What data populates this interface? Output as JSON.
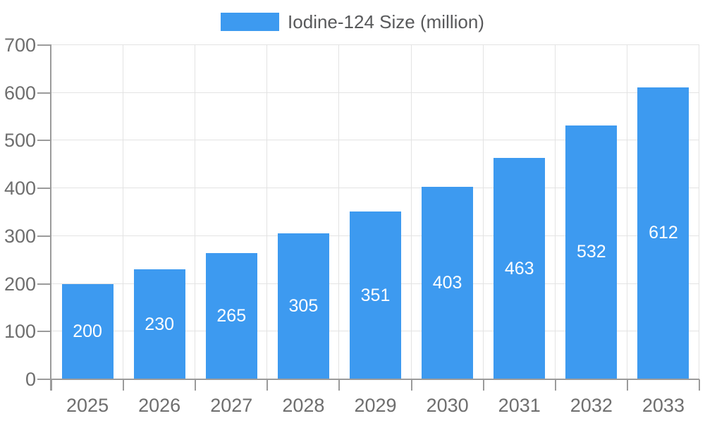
{
  "chart_data": {
    "type": "bar",
    "title": "",
    "legend": "Iodine-124 Size (million)",
    "legend_position": "top",
    "categories": [
      "2025",
      "2026",
      "2027",
      "2028",
      "2029",
      "2030",
      "2031",
      "2032",
      "2033"
    ],
    "series": [
      {
        "name": "Iodine-124 Size (million)",
        "values": [
          200,
          230,
          265,
          305,
          351,
          403,
          463,
          532,
          612
        ]
      }
    ],
    "xlabel": "",
    "ylabel": "",
    "ylim": [
      0,
      700
    ],
    "ytick_step": 100,
    "grid": true,
    "bar_value_labels": "inside-center, white",
    "colors": {
      "bar": "#3d9af0",
      "bar_label_text": "#ffffff",
      "axis": "#9b9b9b",
      "gridline": "#e3e3e3",
      "tick_label_text": "#6e6e6e",
      "legend_text": "#58595b",
      "background": "#ffffff"
    }
  }
}
